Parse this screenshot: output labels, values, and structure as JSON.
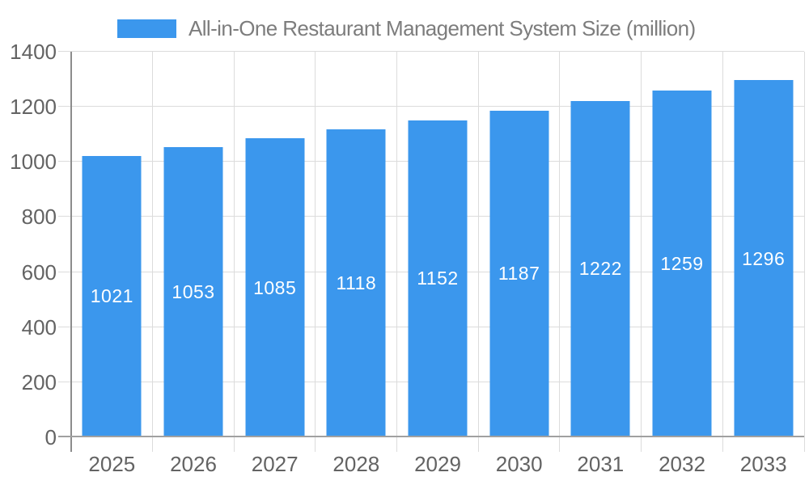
{
  "chart_data": {
    "type": "bar",
    "title": "All-in-One Restaurant Management System Size (million)",
    "legend_label": "All-in-One Restaurant Management System Size (million)",
    "legend_position": "top",
    "categories": [
      "2025",
      "2026",
      "2027",
      "2028",
      "2029",
      "2030",
      "2031",
      "2032",
      "2033"
    ],
    "series": [
      {
        "name": "All-in-One Restaurant Management System Size (million)",
        "values": [
          1021,
          1053,
          1085,
          1118,
          1152,
          1187,
          1222,
          1259,
          1296
        ]
      }
    ],
    "xlabel": "",
    "ylabel": "",
    "ylim": [
      0,
      1400
    ],
    "yticks": [
      0,
      200,
      400,
      600,
      800,
      1000,
      1200,
      1400
    ],
    "grid": {
      "horizontal": true,
      "vertical": true
    },
    "bar_value_labels_inside": true,
    "colors": {
      "bar": "#3B97ED",
      "bar_label": "#FFFFFF",
      "grid": "#DCDCDC",
      "axis": "#8C8C8C",
      "baseline": "#A0A0A0",
      "tick_label": "#636363",
      "legend_text": "#7D7D7D",
      "background": "#FFFFFF"
    }
  }
}
